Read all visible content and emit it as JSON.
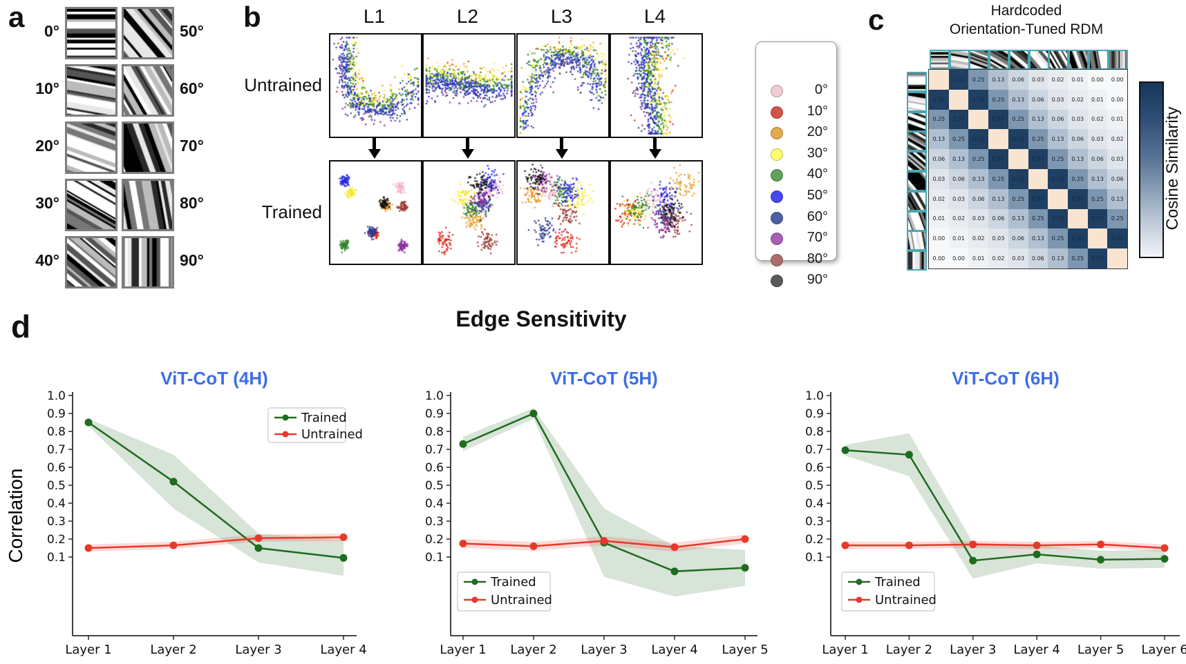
{
  "panel_a": {
    "label": "a",
    "rows": [
      {
        "left_label": "0°",
        "left_angle": 0,
        "right_label": "50°",
        "right_angle": 50
      },
      {
        "left_label": "10°",
        "left_angle": 10,
        "right_label": "60°",
        "right_angle": 60
      },
      {
        "left_label": "20°",
        "left_angle": 20,
        "right_label": "70°",
        "right_angle": 70
      },
      {
        "left_label": "30°",
        "left_angle": 30,
        "right_label": "80°",
        "right_angle": 80
      },
      {
        "left_label": "40°",
        "left_angle": 40,
        "right_label": "90°",
        "right_angle": 90
      }
    ]
  },
  "panel_b": {
    "label": "b",
    "columns": [
      "L1",
      "L2",
      "L3",
      "L4"
    ],
    "row_labels": [
      "Untrained",
      "Trained"
    ],
    "legend": {
      "items": [
        {
          "label": "0°",
          "color": "#f3ccd3"
        },
        {
          "label": "10°",
          "color": "#d35348"
        },
        {
          "label": "20°",
          "color": "#e2a94f"
        },
        {
          "label": "30°",
          "color": "#ffff6e"
        },
        {
          "label": "40°",
          "color": "#62a15c"
        },
        {
          "label": "50°",
          "color": "#4848f0"
        },
        {
          "label": "60°",
          "color": "#4d5fa5"
        },
        {
          "label": "70°",
          "color": "#a55fb5"
        },
        {
          "label": "80°",
          "color": "#ad6c6c"
        },
        {
          "label": "90°",
          "color": "#5a5a5a"
        }
      ]
    },
    "point_colors": [
      "#f2b6c6",
      "#e0281c",
      "#e89b28",
      "#f7e72e",
      "#2e8428",
      "#2424e0",
      "#2c3c96",
      "#8c2da0",
      "#9c3a34",
      "#151515"
    ],
    "untrained_sigma": [
      0.1,
      0.12,
      0.1,
      0.13
    ],
    "trained_sigma": [
      0.045,
      0.09,
      0.11,
      0.12
    ]
  },
  "panel_c": {
    "label": "c",
    "title_line1": "Hardcoded",
    "title_line2": "Orientation-Tuned RDM",
    "colorbar_label": "Cosine Similarity",
    "thumb_angles": [
      0,
      10,
      20,
      30,
      40,
      50,
      60,
      70,
      80,
      90
    ],
    "values": [
      [
        "",
        "0.50",
        "0.25",
        "0.13",
        "0.06",
        "0.03",
        "0.02",
        "0.01",
        "0.00",
        "0.00"
      ],
      [
        "0.50",
        "",
        "0.50",
        "0.25",
        "0.13",
        "0.06",
        "0.03",
        "0.02",
        "0.01",
        "0.00"
      ],
      [
        "0.25",
        "0.50",
        "",
        "0.50",
        "0.25",
        "0.13",
        "0.06",
        "0.03",
        "0.02",
        "0.01"
      ],
      [
        "0.13",
        "0.25",
        "0.50",
        "",
        "0.50",
        "0.25",
        "0.13",
        "0.06",
        "0.03",
        "0.02"
      ],
      [
        "0.06",
        "0.13",
        "0.25",
        "0.50",
        "",
        "0.50",
        "0.25",
        "0.13",
        "0.06",
        "0.03"
      ],
      [
        "0.03",
        "0.06",
        "0.13",
        "0.25",
        "0.50",
        "",
        "0.50",
        "0.25",
        "0.13",
        "0.06"
      ],
      [
        "0.02",
        "0.03",
        "0.06",
        "0.13",
        "0.25",
        "0.50",
        "",
        "0.50",
        "0.25",
        "0.13"
      ],
      [
        "0.01",
        "0.02",
        "0.03",
        "0.06",
        "0.13",
        "0.25",
        "0.50",
        "",
        "0.50",
        "0.25"
      ],
      [
        "0.00",
        "0.01",
        "0.02",
        "0.03",
        "0.06",
        "0.13",
        "0.25",
        "0.50",
        "",
        "0.50"
      ],
      [
        "0.00",
        "0.00",
        "0.01",
        "0.02",
        "0.03",
        "0.06",
        "0.13",
        "0.25",
        "0.50",
        ""
      ]
    ],
    "value_colors": {
      "diag": "#f9e4d1",
      "0.50": "#1f3f63",
      "0.25": "#7e97b1",
      "0.13": "#b0c0d0",
      "0.06": "#ccd6e0",
      "0.03": "#dfe5eb",
      "0.02": "#e8ecf0",
      "0.01": "#eff2f5",
      "0.00": "#f6f8fa"
    }
  },
  "panel_d": {
    "label": "d",
    "title": "Edge Sensitivity",
    "ylabel": "Correlation",
    "title_color": "#3d6de8",
    "yticks": [
      "1.0",
      "0.9",
      "0.8",
      "0.7",
      "0.6",
      "0.5",
      "0.4",
      "0.3",
      "0.2",
      "0.1"
    ],
    "series_colors": {
      "Trained": "#1f6b1f",
      "Untrained": "#e8382b"
    },
    "charts": [
      {
        "title": "ViT-CoT (4H)",
        "x_labels": [
          "Layer 1",
          "Layer 2",
          "Layer 3",
          "Layer 4"
        ],
        "legend_loc": "upper-right",
        "series": [
          {
            "name": "Trained",
            "color": "#1f6b1f",
            "values": [
              0.85,
              0.52,
              0.15,
              0.095
            ],
            "band": [
              0.02,
              0.15,
              0.08,
              0.1
            ]
          },
          {
            "name": "Untrained",
            "color": "#e8382b",
            "values": [
              0.15,
              0.165,
              0.205,
              0.21
            ],
            "band": [
              0.02,
              0.02,
              0.02,
              0.02
            ]
          }
        ]
      },
      {
        "title": "ViT-CoT (5H)",
        "x_labels": [
          "Layer 1",
          "Layer 2",
          "Layer 3",
          "Layer 4",
          "Layer 5"
        ],
        "legend_loc": "lower-left",
        "series": [
          {
            "name": "Trained",
            "color": "#1f6b1f",
            "values": [
              0.73,
              0.9,
              0.18,
              0.02,
              0.04
            ],
            "band": [
              0.04,
              0.03,
              0.19,
              0.14,
              0.1
            ]
          },
          {
            "name": "Untrained",
            "color": "#e8382b",
            "values": [
              0.175,
              0.16,
              0.19,
              0.155,
              0.2
            ],
            "band": [
              0.025,
              0.025,
              0.025,
              0.025,
              0.025
            ]
          }
        ]
      },
      {
        "title": "ViT-CoT (6H)",
        "x_labels": [
          "Layer 1",
          "Layer 2",
          "Layer 3",
          "Layer 4",
          "Layer 5",
          "Layer 6"
        ],
        "legend_loc": "lower-left",
        "series": [
          {
            "name": "Trained",
            "color": "#1f6b1f",
            "values": [
              0.695,
              0.67,
              0.08,
              0.115,
              0.085,
              0.09
            ],
            "band": [
              0.03,
              0.12,
              0.1,
              0.05,
              0.05,
              0.05
            ]
          },
          {
            "name": "Untrained",
            "color": "#e8382b",
            "values": [
              0.165,
              0.165,
              0.17,
              0.165,
              0.17,
              0.15
            ],
            "band": [
              0.02,
              0.02,
              0.02,
              0.02,
              0.02,
              0.02
            ]
          }
        ]
      }
    ]
  },
  "chart_data": [
    {
      "type": "line",
      "title": "ViT-CoT (4H)",
      "x": [
        "Layer 1",
        "Layer 2",
        "Layer 3",
        "Layer 4"
      ],
      "ylabel": "Correlation",
      "ylim": [
        -0.34,
        1.02
      ],
      "series": [
        {
          "name": "Trained",
          "values": [
            0.85,
            0.52,
            0.15,
            0.095
          ]
        },
        {
          "name": "Untrained",
          "values": [
            0.15,
            0.165,
            0.205,
            0.21
          ]
        }
      ],
      "legend_position": "upper-right"
    },
    {
      "type": "line",
      "title": "ViT-CoT (5H)",
      "x": [
        "Layer 1",
        "Layer 2",
        "Layer 3",
        "Layer 4",
        "Layer 5"
      ],
      "ylabel": "",
      "ylim": [
        -0.34,
        1.02
      ],
      "series": [
        {
          "name": "Trained",
          "values": [
            0.73,
            0.9,
            0.18,
            0.02,
            0.04
          ]
        },
        {
          "name": "Untrained",
          "values": [
            0.175,
            0.16,
            0.19,
            0.155,
            0.2
          ]
        }
      ],
      "legend_position": "lower-left"
    },
    {
      "type": "line",
      "title": "ViT-CoT (6H)",
      "x": [
        "Layer 1",
        "Layer 2",
        "Layer 3",
        "Layer 4",
        "Layer 5",
        "Layer 6"
      ],
      "ylabel": "",
      "ylim": [
        -0.34,
        1.02
      ],
      "series": [
        {
          "name": "Trained",
          "values": [
            0.695,
            0.67,
            0.08,
            0.115,
            0.085,
            0.09
          ]
        },
        {
          "name": "Untrained",
          "values": [
            0.165,
            0.165,
            0.17,
            0.165,
            0.17,
            0.15
          ]
        }
      ],
      "legend_position": "lower-left"
    }
  ]
}
